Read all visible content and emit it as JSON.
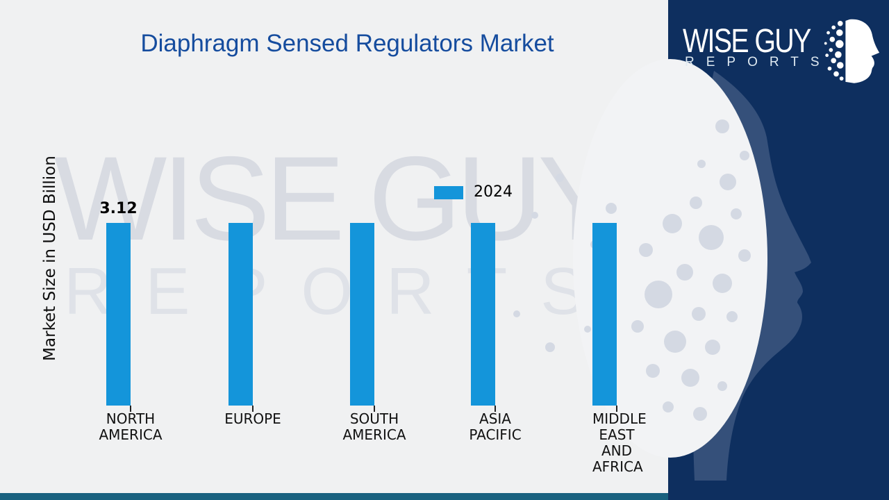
{
  "title": {
    "text": "Diaphragm Sensed Regulators Market",
    "color": "#154c9e"
  },
  "watermark": {
    "line1": "WISE GUY",
    "line2": "REPORTS"
  },
  "logo": {
    "line1": "WISE GUY",
    "line2": "REPORTS",
    "background": "#0e2f5f",
    "icon": "head-profile-dots-icon"
  },
  "legend": {
    "items": [
      {
        "label": "2024",
        "color": "#1495da"
      }
    ]
  },
  "colors": {
    "background": "#f0f1f2",
    "bar": "#1495da",
    "navy_panel": "#0e2f5f",
    "face_silhouette": "#35507a",
    "bottom_bar": "#19617f",
    "watermark_gray": "#d8dbe2"
  },
  "chart_data": {
    "type": "bar",
    "title": "Diaphragm Sensed Regulators Market",
    "categories": [
      "NORTH AMERICA",
      "EUROPE",
      "SOUTH AMERICA",
      "ASIA PACIFIC",
      "MIDDLE EAST AND AFRICA"
    ],
    "series": [
      {
        "name": "2024",
        "color": "#1495da",
        "values": [
          3.12,
          3.12,
          3.12,
          3.12,
          3.12
        ]
      }
    ],
    "value_labels": [
      "3.12",
      "",
      "",
      "",
      ""
    ],
    "xlabel": "",
    "ylabel": "Market Size in USD Billion",
    "grid": false,
    "legend_position": "top-right",
    "y_axis_ticks_visible": false
  }
}
